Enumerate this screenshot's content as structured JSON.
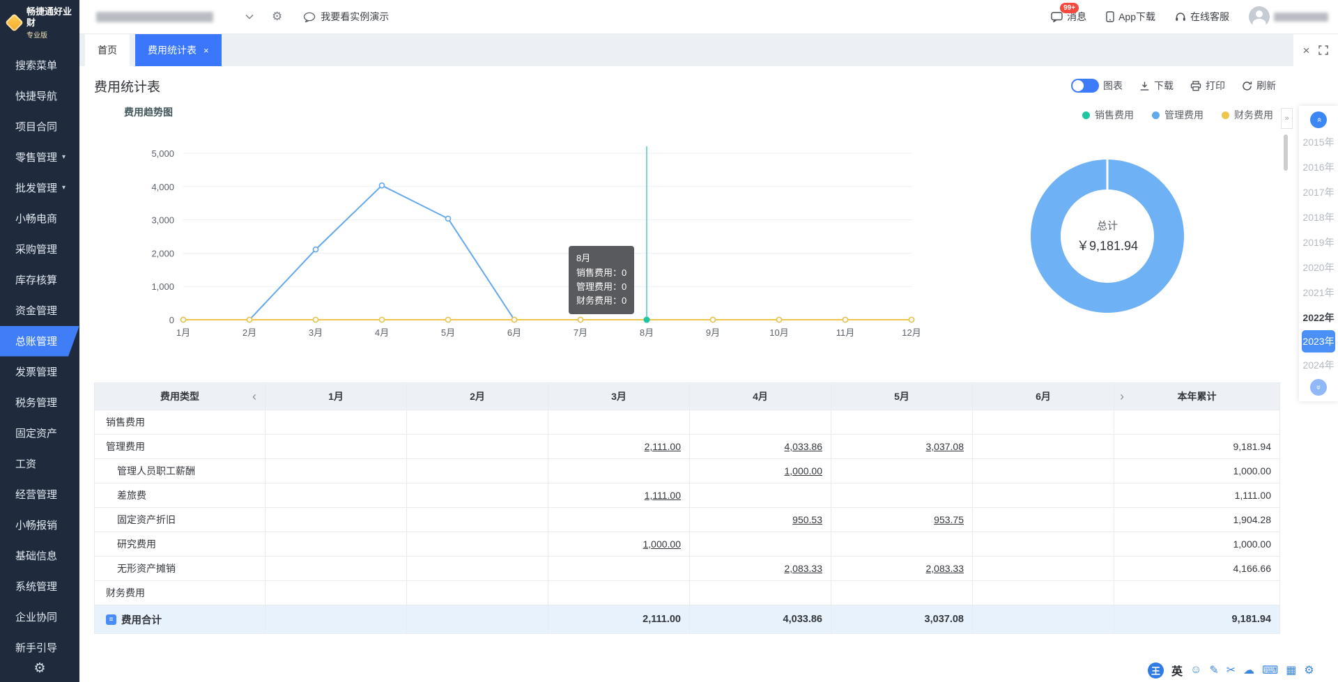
{
  "app": {
    "logo_title": "畅捷通好业财",
    "logo_subtitle": "专业版"
  },
  "topbar": {
    "demo_text": "我要看实例演示",
    "message_label": "消息",
    "message_badge": "99+",
    "app_download_label": "App下载",
    "service_label": "在线客服"
  },
  "sidebar": {
    "items": [
      {
        "label": "搜索菜单"
      },
      {
        "label": "快捷导航"
      },
      {
        "label": "项目合同"
      },
      {
        "label": "零售管理",
        "dropdown": true
      },
      {
        "label": "批发管理",
        "dropdown": true
      },
      {
        "label": "小畅电商"
      },
      {
        "label": "采购管理"
      },
      {
        "label": "库存核算"
      },
      {
        "label": "资金管理"
      },
      {
        "label": "总账管理",
        "active": true
      },
      {
        "label": "发票管理"
      },
      {
        "label": "税务管理"
      },
      {
        "label": "固定资产"
      },
      {
        "label": "工资"
      },
      {
        "label": "经营管理"
      },
      {
        "label": "小畅报销"
      },
      {
        "label": "基础信息"
      },
      {
        "label": "系统管理"
      },
      {
        "label": "企业协同"
      },
      {
        "label": "新手引导"
      }
    ]
  },
  "tabs": {
    "home": "首页",
    "active_tab": "费用统计表"
  },
  "page": {
    "title": "费用统计表",
    "toolbar": {
      "chart_toggle": "图表",
      "download": "下载",
      "print": "打印",
      "refresh": "刷新"
    }
  },
  "chart_data": [
    {
      "type": "line",
      "title": "费用趋势图",
      "categories": [
        "1月",
        "2月",
        "3月",
        "4月",
        "5月",
        "6月",
        "7月",
        "8月",
        "9月",
        "10月",
        "11月",
        "12月"
      ],
      "series": [
        {
          "name": "销售费用",
          "color": "#1fc7a0",
          "values": [
            0,
            0,
            0,
            0,
            0,
            0,
            0,
            0,
            0,
            0,
            0,
            0
          ]
        },
        {
          "name": "管理费用",
          "color": "#62a8ea",
          "values": [
            0,
            0,
            2111.0,
            4033.86,
            3037.08,
            0,
            0,
            0,
            0,
            0,
            0,
            0
          ]
        },
        {
          "name": "财务费用",
          "color": "#eec64e",
          "values": [
            0,
            0,
            0,
            0,
            0,
            0,
            0,
            0,
            0,
            0,
            0,
            0
          ]
        }
      ],
      "ylim": [
        0,
        5000
      ],
      "yticks": [
        0,
        1000,
        2000,
        3000,
        4000,
        5000
      ],
      "ytick_labels": [
        "0",
        "1,000",
        "2,000",
        "3,000",
        "4,000",
        "5,000"
      ],
      "grid": true,
      "legend_position": "top-right",
      "tooltip": {
        "month_index": 7,
        "title": "8月",
        "lines": [
          "销售费用：0",
          "管理费用：0",
          "财务费用：0"
        ]
      }
    },
    {
      "type": "pie",
      "style": "donut",
      "center_label": "总计",
      "center_value": "￥9,181.94",
      "slices": [
        {
          "name": "管理费用",
          "value": 9181.94,
          "color": "#6fb1f5"
        }
      ]
    }
  ],
  "years": {
    "items": [
      "2015年",
      "2016年",
      "2017年",
      "2018年",
      "2019年",
      "2020年",
      "2021年",
      "2022年",
      "2023年",
      "2024年"
    ],
    "selected": "2023年",
    "current": "2022年"
  },
  "table": {
    "headers": {
      "type": "费用类型",
      "months": [
        "1月",
        "2月",
        "3月",
        "4月",
        "5月",
        "6月"
      ],
      "total": "本年累计"
    },
    "rows": [
      {
        "label": "销售费用",
        "indent": false,
        "cells": [
          "",
          "",
          "",
          "",
          "",
          ""
        ],
        "links": [
          false,
          false,
          false,
          false,
          false,
          false
        ],
        "total": ""
      },
      {
        "label": "管理费用",
        "indent": false,
        "cells": [
          "",
          "",
          "2,111.00",
          "4,033.86",
          "3,037.08",
          ""
        ],
        "links": [
          false,
          false,
          true,
          true,
          true,
          false
        ],
        "total": "9,181.94"
      },
      {
        "label": "管理人员职工薪酬",
        "indent": true,
        "cells": [
          "",
          "",
          "",
          "1,000.00",
          "",
          ""
        ],
        "links": [
          false,
          false,
          false,
          true,
          false,
          false
        ],
        "total": "1,000.00"
      },
      {
        "label": "差旅费",
        "indent": true,
        "cells": [
          "",
          "",
          "1,111.00",
          "",
          "",
          ""
        ],
        "links": [
          false,
          false,
          true,
          false,
          false,
          false
        ],
        "total": "1,111.00"
      },
      {
        "label": "固定资产折旧",
        "indent": true,
        "cells": [
          "",
          "",
          "",
          "950.53",
          "953.75",
          ""
        ],
        "links": [
          false,
          false,
          false,
          true,
          true,
          false
        ],
        "total": "1,904.28"
      },
      {
        "label": "研究费用",
        "indent": true,
        "cells": [
          "",
          "",
          "1,000.00",
          "",
          "",
          ""
        ],
        "links": [
          false,
          false,
          true,
          false,
          false,
          false
        ],
        "total": "1,000.00"
      },
      {
        "label": "无形资产摊销",
        "indent": true,
        "cells": [
          "",
          "",
          "",
          "2,083.33",
          "2,083.33",
          ""
        ],
        "links": [
          false,
          false,
          false,
          true,
          true,
          false
        ],
        "total": "4,166.66"
      },
      {
        "label": "财务费用",
        "indent": false,
        "cells": [
          "",
          "",
          "",
          "",
          "",
          ""
        ],
        "links": [
          false,
          false,
          false,
          false,
          false,
          false
        ],
        "total": ""
      }
    ],
    "footer": {
      "label": "费用合计",
      "cells": [
        "",
        "",
        "2,111.00",
        "4,033.86",
        "3,037.08",
        ""
      ],
      "total": "9,181.94"
    }
  },
  "icons": {
    "close": "×",
    "tab_close": "×",
    "chevron_down": "▾",
    "collapse_handle": "»",
    "col_left": "‹",
    "col_right": "›",
    "gear": "⚙",
    "footer_list": "≡",
    "scroll_chevron": "»"
  },
  "ime": {
    "badge": "王",
    "mode": "英",
    "icons": [
      {
        "name": "smiley-icon",
        "glyph": "☺"
      },
      {
        "name": "pen-icon",
        "glyph": "✎"
      },
      {
        "name": "scissors-icon",
        "glyph": "✂"
      },
      {
        "name": "cloud-icon",
        "glyph": "☁"
      },
      {
        "name": "keyboard-icon",
        "glyph": "⌨"
      },
      {
        "name": "grid-icon",
        "glyph": "▦"
      },
      {
        "name": "gear-icon",
        "glyph": "⚙"
      }
    ]
  },
  "colors": {
    "accent_blue": "#3a77fd",
    "sidebar_bg": "#1f2b3c",
    "active_menu": "#3f7ef7",
    "donut_blue": "#6fb1f5",
    "series_green": "#1fc7a0",
    "series_blue": "#62a8ea",
    "series_yellow": "#eec64e",
    "badge_red": "#f4493c",
    "selected_year_bg": "#4a90f7",
    "tooltip_line": "#35c2ae"
  }
}
